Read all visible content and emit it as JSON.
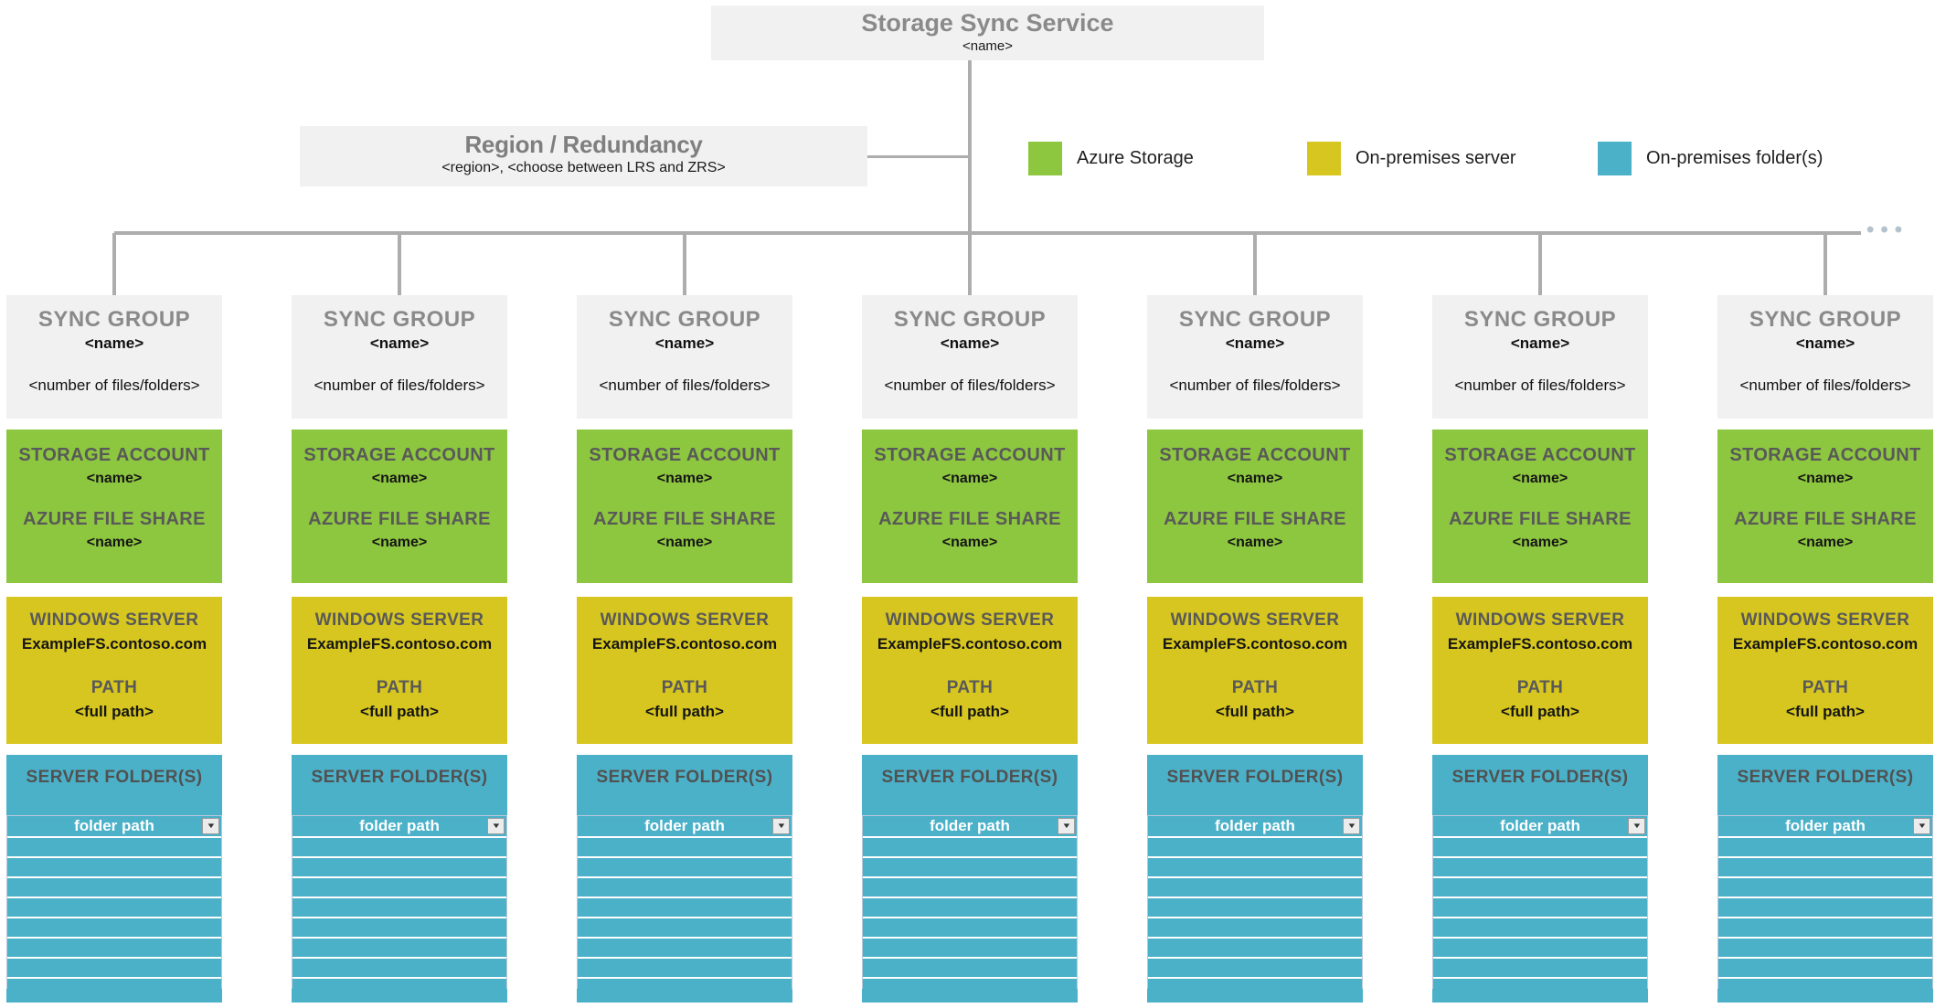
{
  "root_box": {
    "title": "Storage Sync Service",
    "name": "<name>"
  },
  "region_box": {
    "title": "Region / Redundancy",
    "subtitle": "<region>, <choose between LRS and ZRS>"
  },
  "legend": {
    "items": [
      {
        "label": "Azure Storage",
        "color": "#8DC63F"
      },
      {
        "label": "On-premises server",
        "color": "#D7C61F"
      },
      {
        "label": "On-premises folder(s)",
        "color": "#4BB1C9"
      }
    ]
  },
  "colors": {
    "azure_storage_green": "#8DC63F",
    "on_premises_server_yellow": "#D7C61F",
    "on_premises_folder_blue": "#4BB1C9",
    "box_gray": "#F1F1F1",
    "connector_gray": "#ADADAD"
  },
  "icons": {
    "dropdown_arrow": "▼",
    "more_indicator_dots": "•••"
  },
  "sync_groups": [
    {
      "title": "SYNC GROUP",
      "name": "<name>",
      "count": "<number of files/folders>",
      "storage_account_label": "STORAGE ACCOUNT",
      "storage_account_name": "<name>",
      "file_share_label": "AZURE FILE SHARE",
      "file_share_name": "<name>",
      "windows_server_label": "WINDOWS SERVER",
      "windows_server_name": "ExampleFS.contoso.com",
      "path_label": "PATH",
      "path_value": "<full path>",
      "server_folders_label": "SERVER FOLDER(S)",
      "folder_path_value": "folder path",
      "empty_row_count": 8
    },
    {
      "title": "SYNC GROUP",
      "name": "<name>",
      "count": "<number of files/folders>",
      "storage_account_label": "STORAGE ACCOUNT",
      "storage_account_name": "<name>",
      "file_share_label": "AZURE FILE SHARE",
      "file_share_name": "<name>",
      "windows_server_label": "WINDOWS SERVER",
      "windows_server_name": "ExampleFS.contoso.com",
      "path_label": "PATH",
      "path_value": "<full path>",
      "server_folders_label": "SERVER FOLDER(S)",
      "folder_path_value": "folder path",
      "empty_row_count": 8
    },
    {
      "title": "SYNC GROUP",
      "name": "<name>",
      "count": "<number of files/folders>",
      "storage_account_label": "STORAGE ACCOUNT",
      "storage_account_name": "<name>",
      "file_share_label": "AZURE FILE SHARE",
      "file_share_name": "<name>",
      "windows_server_label": "WINDOWS SERVER",
      "windows_server_name": "ExampleFS.contoso.com",
      "path_label": "PATH",
      "path_value": "<full path>",
      "server_folders_label": "SERVER FOLDER(S)",
      "folder_path_value": "folder path",
      "empty_row_count": 8
    },
    {
      "title": "SYNC GROUP",
      "name": "<name>",
      "count": "<number of files/folders>",
      "storage_account_label": "STORAGE ACCOUNT",
      "storage_account_name": "<name>",
      "file_share_label": "AZURE FILE SHARE",
      "file_share_name": "<name>",
      "windows_server_label": "WINDOWS SERVER",
      "windows_server_name": "ExampleFS.contoso.com",
      "path_label": "PATH",
      "path_value": "<full path>",
      "server_folders_label": "SERVER FOLDER(S)",
      "folder_path_value": "folder path",
      "empty_row_count": 8
    },
    {
      "title": "SYNC GROUP",
      "name": "<name>",
      "count": "<number of files/folders>",
      "storage_account_label": "STORAGE ACCOUNT",
      "storage_account_name": "<name>",
      "file_share_label": "AZURE FILE SHARE",
      "file_share_name": "<name>",
      "windows_server_label": "WINDOWS SERVER",
      "windows_server_name": "ExampleFS.contoso.com",
      "path_label": "PATH",
      "path_value": "<full path>",
      "server_folders_label": "SERVER FOLDER(S)",
      "folder_path_value": "folder path",
      "empty_row_count": 8
    },
    {
      "title": "SYNC GROUP",
      "name": "<name>",
      "count": "<number of files/folders>",
      "storage_account_label": "STORAGE ACCOUNT",
      "storage_account_name": "<name>",
      "file_share_label": "AZURE FILE SHARE",
      "file_share_name": "<name>",
      "windows_server_label": "WINDOWS SERVER",
      "windows_server_name": "ExampleFS.contoso.com",
      "path_label": "PATH",
      "path_value": "<full path>",
      "server_folders_label": "SERVER FOLDER(S)",
      "folder_path_value": "folder path",
      "empty_row_count": 8
    },
    {
      "title": "SYNC GROUP",
      "name": "<name>",
      "count": "<number of files/folders>",
      "storage_account_label": "STORAGE ACCOUNT",
      "storage_account_name": "<name>",
      "file_share_label": "AZURE FILE SHARE",
      "file_share_name": "<name>",
      "windows_server_label": "WINDOWS SERVER",
      "windows_server_name": "ExampleFS.contoso.com",
      "path_label": "PATH",
      "path_value": "<full path>",
      "server_folders_label": "SERVER FOLDER(S)",
      "folder_path_value": "folder path",
      "empty_row_count": 8
    }
  ]
}
